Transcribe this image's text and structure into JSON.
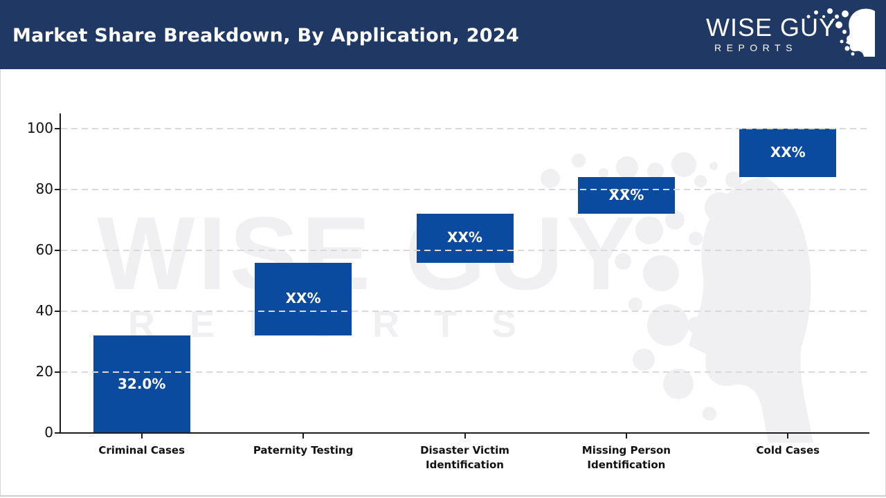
{
  "header": {
    "title": "Market Share Breakdown, By Application, 2024",
    "logo": {
      "name": "WISE GUY",
      "subname": "R E P O R T S"
    }
  },
  "watermark": {
    "line1": "WISE GUY",
    "line2": "REPORTS"
  },
  "colors": {
    "header_bg": "#1f3864",
    "bar": "#0a4b9f",
    "grid": "#d9d9d9",
    "axis": "#1c1c1c",
    "bar_label": "#ffffff",
    "watermark": "#f0f0f2"
  },
  "chart_data": {
    "type": "bar",
    "variant": "waterfall",
    "title": "Market Share Breakdown, By Application, 2024",
    "categories": [
      "Criminal Cases",
      "Paternity Testing",
      "Disaster Victim Identification",
      "Missing Person Identification",
      "Cold Cases"
    ],
    "segments": [
      {
        "category": "Criminal Cases",
        "start": 0,
        "end": 32,
        "value_pct": 32,
        "label": "32.0%"
      },
      {
        "category": "Paternity Testing",
        "start": 32,
        "end": 56,
        "value_pct": 24,
        "label": "XX%"
      },
      {
        "category": "Disaster Victim Identification",
        "start": 56,
        "end": 72,
        "value_pct": 16,
        "label": "XX%"
      },
      {
        "category": "Missing Person Identification",
        "start": 72,
        "end": 84,
        "value_pct": 12,
        "label": "XX%"
      },
      {
        "category": "Cold Cases",
        "start": 84,
        "end": 100,
        "value_pct": 16,
        "label": "XX%"
      }
    ],
    "yticks": [
      0,
      20,
      40,
      60,
      80,
      100
    ],
    "ylim": [
      0,
      105
    ],
    "xlabel": "",
    "ylabel": "",
    "grid": "horizontal-dashed",
    "legend": "none"
  }
}
